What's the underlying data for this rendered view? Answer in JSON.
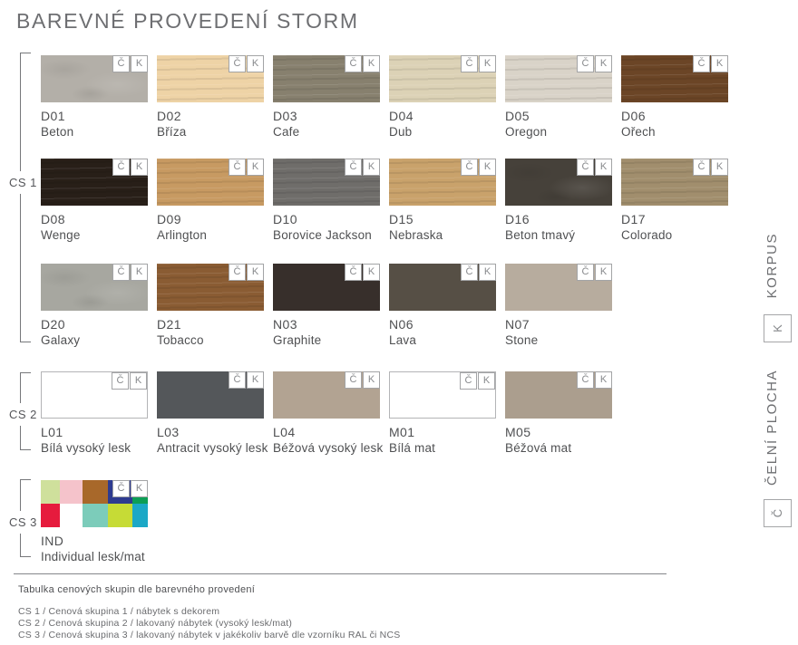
{
  "title": "BAREVNÉ PROVEDENÍ STORM",
  "badge_front_label": "Č",
  "badge_korpus_label": "K",
  "groups": [
    {
      "label": "CS 1"
    },
    {
      "label": "CS 2"
    },
    {
      "label": "CS 3"
    }
  ],
  "rows": [
    {
      "swatches": [
        {
          "code": "D01",
          "name": "Beton",
          "color": "#b3afa8",
          "texture": "concrete"
        },
        {
          "code": "D02",
          "name": "Bříza",
          "color": "#eed3a6",
          "texture": "wood"
        },
        {
          "code": "D03",
          "name": "Cafe",
          "color": "#87806e",
          "texture": "wood"
        },
        {
          "code": "D04",
          "name": "Dub",
          "color": "#dcd2b6",
          "texture": "wood"
        },
        {
          "code": "D05",
          "name": "Oregon",
          "color": "#d9d3c8",
          "texture": "wood"
        },
        {
          "code": "D06",
          "name": "Ořech",
          "color": "#6b4526",
          "texture": "wood"
        }
      ]
    },
    {
      "swatches": [
        {
          "code": "D08",
          "name": "Wenge",
          "color": "#281f18",
          "texture": "wood"
        },
        {
          "code": "D09",
          "name": "Arlington",
          "color": "#c79a62",
          "texture": "wood"
        },
        {
          "code": "D10",
          "name": "Borovice Jackson",
          "color": "#6f6d6a",
          "texture": "wood"
        },
        {
          "code": "D15",
          "name": "Nebraska",
          "color": "#c9a26b",
          "texture": "wood"
        },
        {
          "code": "D16",
          "name": "Beton tmavý",
          "color": "#46413a",
          "texture": "concrete"
        },
        {
          "code": "D17",
          "name": "Colorado",
          "color": "#a18e6d",
          "texture": "wood"
        }
      ]
    },
    {
      "swatches": [
        {
          "code": "D20",
          "name": "Galaxy",
          "color": "#a7a7a0",
          "texture": "concrete"
        },
        {
          "code": "D21",
          "name": "Tobacco",
          "color": "#8a5c33",
          "texture": "wood"
        },
        {
          "code": "N03",
          "name": "Graphite",
          "color": "#372f2b",
          "texture": "plain"
        },
        {
          "code": "N06",
          "name": "Lava",
          "color": "#564f45",
          "texture": "plain"
        },
        {
          "code": "N07",
          "name": "Stone",
          "color": "#b7ac9e",
          "texture": "plain"
        }
      ]
    },
    {
      "swatches": [
        {
          "code": "L01",
          "name": "Bílá vysoký lesk",
          "color": "#ffffff",
          "texture": "white"
        },
        {
          "code": "L03",
          "name": "Antracit vysoký lesk",
          "color": "#54575a",
          "texture": "plain"
        },
        {
          "code": "L04",
          "name": "Béžová vysoký lesk",
          "color": "#b2a392",
          "texture": "plain"
        },
        {
          "code": "M01",
          "name": "Bílá mat",
          "color": "#ffffff",
          "texture": "white"
        },
        {
          "code": "M05",
          "name": "Béžová mat",
          "color": "#ab9e8e",
          "texture": "plain"
        }
      ]
    },
    {
      "swatches": [
        {
          "code": "IND",
          "name": "Individual lesk/mat",
          "color": "#ffffff",
          "texture": "multi"
        }
      ]
    }
  ],
  "ind": {
    "tiles_top": [
      "#cfe09c",
      "#f5c3cb",
      "#a8682a",
      "#2e3b90",
      "#0d9e55"
    ],
    "tiles_bottom": [
      "#e61b3d",
      "#ffffff",
      "#7cccba",
      "#c6db36",
      "#1ba8c6"
    ]
  },
  "side": {
    "korpus_label": "KORPUS",
    "korpus_symbol": "K",
    "front_label": "ČELNÍ PLOCHA",
    "front_symbol": "Č"
  },
  "footer": {
    "heading": "Tabulka cenových skupin dle barevného provedení",
    "lines": [
      "CS 1 / Cenová skupina 1 / nábytek s dekorem",
      "CS 2 / Cenová skupina 2 / lakovaný nábytek (vysoký lesk/mat)",
      "CS 3 / Cenová skupina 3 / lakovaný nábytek v jakékoliv barvě dle vzorníku RAL či NCS"
    ]
  }
}
